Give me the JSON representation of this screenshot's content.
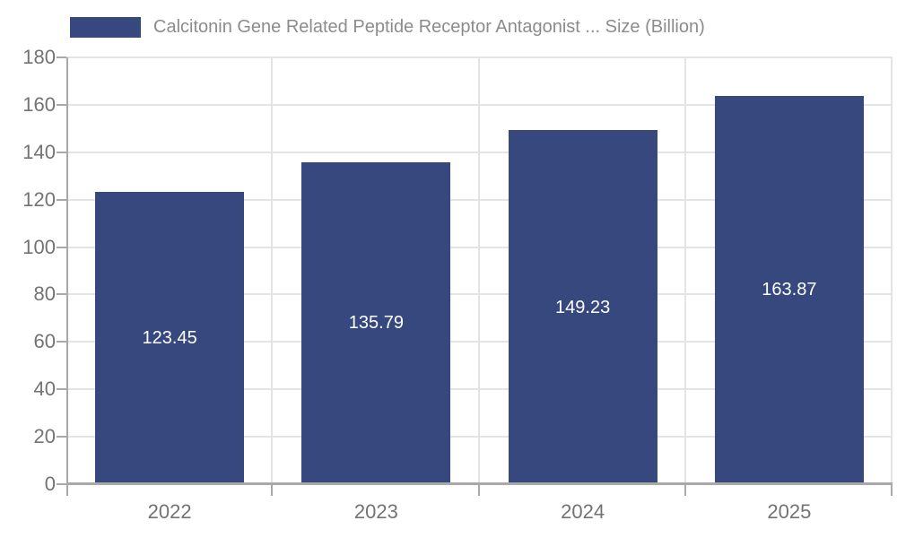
{
  "chart_data": {
    "type": "bar",
    "title": "",
    "legend": {
      "label": "Calcitonin Gene Related Peptide Receptor Antagonist ... Size (Billion)",
      "position": "top-left"
    },
    "categories": [
      "2022",
      "2023",
      "2024",
      "2025"
    ],
    "series": [
      {
        "name": "Calcitonin Gene Related Peptide Receptor Antagonist ... Size (Billion)",
        "values": [
          123.45,
          135.79,
          149.23,
          163.87
        ]
      }
    ],
    "value_labels": [
      "123.45",
      "135.79",
      "149.23",
      "163.87"
    ],
    "xlabel": "",
    "ylabel": "",
    "ylim": [
      0,
      180
    ],
    "yticks": [
      0,
      20,
      40,
      60,
      80,
      100,
      120,
      140,
      160,
      180
    ],
    "grid": true,
    "colors": {
      "bar": "#36487e",
      "grid": "#e4e4e4",
      "axis": "#a9a9a9",
      "tick_label": "#737373",
      "legend_text": "#8c8c8c",
      "value_label": "#ffffff"
    }
  }
}
